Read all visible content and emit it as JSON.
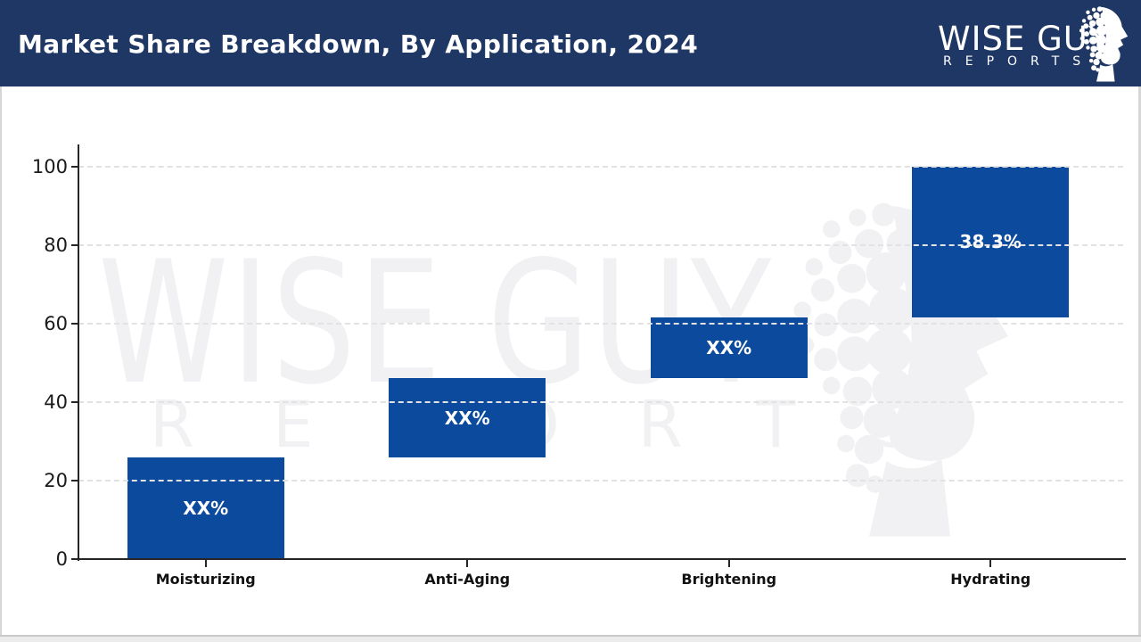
{
  "header": {
    "title": "Market Share Breakdown, By Application, 2024",
    "background_color": "#1f3765",
    "logo": {
      "line1": "WISE GUY",
      "line2": "REPORTS",
      "icon": "dotted-face-profile-icon"
    }
  },
  "watermark": {
    "line1": "WISE GUY",
    "line2": "REPORTS",
    "icon": "dotted-face-profile-watermark"
  },
  "chart_data": {
    "type": "bar",
    "subtype": "floating-waterfall",
    "title": "Market Share Breakdown, By Application, 2024",
    "categories": [
      "Moisturizing",
      "Anti-Aging",
      "Brightening",
      "Hydrating"
    ],
    "bars": [
      {
        "category": "Moisturizing",
        "start": 0,
        "end": 25.8,
        "size": 25.8,
        "label": "XX%"
      },
      {
        "category": "Anti-Aging",
        "start": 25.8,
        "end": 46.2,
        "size": 20.4,
        "label": "XX%"
      },
      {
        "category": "Brightening",
        "start": 46.2,
        "end": 61.7,
        "size": 15.5,
        "label": "XX%"
      },
      {
        "category": "Hydrating",
        "start": 61.7,
        "end": 100,
        "size": 38.3,
        "label": "38.3%"
      }
    ],
    "xlabel": "",
    "ylabel": "",
    "ylim": [
      0,
      100
    ],
    "yticks": [
      0,
      20,
      40,
      60,
      80,
      100
    ],
    "grid": "horizontal-dashed",
    "legend": "none",
    "bar_color": "#0b4a9c",
    "bar_label_color": "#ffffff",
    "axis_color": "#262626",
    "grid_color": "#e2e2e2"
  }
}
